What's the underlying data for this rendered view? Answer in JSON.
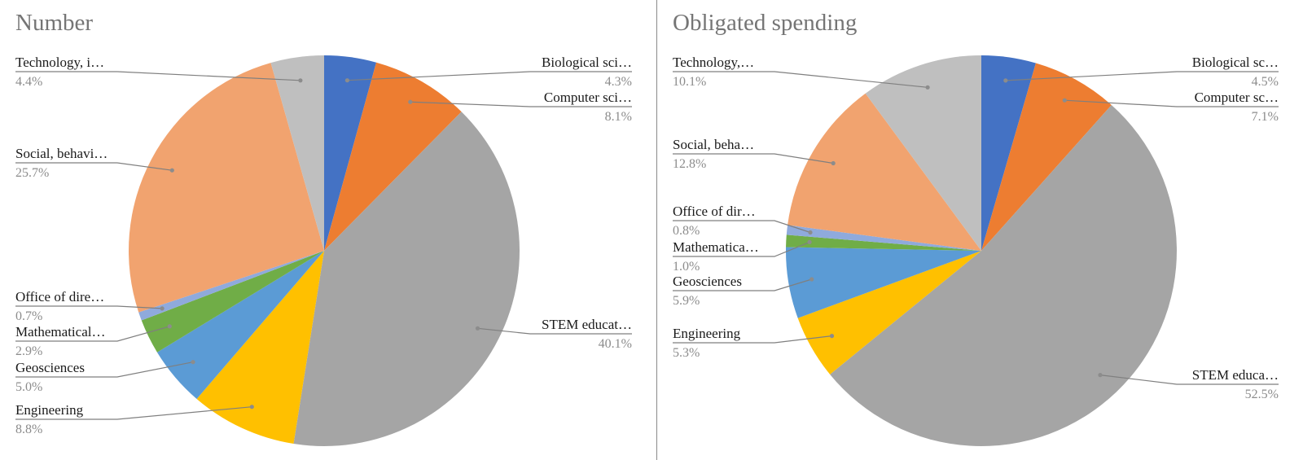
{
  "chart_data": [
    {
      "type": "pie",
      "title": "Number",
      "slices": [
        {
          "label": "Biological sci…",
          "value": 4.3,
          "display": "4.3%",
          "color": "#4472c4"
        },
        {
          "label": "Computer sci…",
          "value": 8.1,
          "display": "8.1%",
          "color": "#ed7d31"
        },
        {
          "label": "STEM educat…",
          "value": 40.1,
          "display": "40.1%",
          "color": "#a5a5a5"
        },
        {
          "label": "Engineering",
          "value": 8.8,
          "display": "8.8%",
          "color": "#ffc000"
        },
        {
          "label": "Geosciences",
          "value": 5.0,
          "display": "5.0%",
          "color": "#5b9bd5"
        },
        {
          "label": "Mathematical…",
          "value": 2.9,
          "display": "2.9%",
          "color": "#70ad47"
        },
        {
          "label": "Office of dire…",
          "value": 0.7,
          "display": "0.7%",
          "color": "#8faadc"
        },
        {
          "label": "Social, behavi…",
          "value": 25.7,
          "display": "25.7%",
          "color": "#f1a36f"
        },
        {
          "label": "Technology, i…",
          "value": 4.4,
          "display": "4.4%",
          "color": "#bfbfbf"
        }
      ]
    },
    {
      "type": "pie",
      "title": "Obligated spending",
      "slices": [
        {
          "label": "Biological sc…",
          "value": 4.5,
          "display": "4.5%",
          "color": "#4472c4"
        },
        {
          "label": "Computer sc…",
          "value": 7.1,
          "display": "7.1%",
          "color": "#ed7d31"
        },
        {
          "label": "STEM educa…",
          "value": 52.5,
          "display": "52.5%",
          "color": "#a5a5a5"
        },
        {
          "label": "Engineering",
          "value": 5.3,
          "display": "5.3%",
          "color": "#ffc000"
        },
        {
          "label": "Geosciences",
          "value": 5.9,
          "display": "5.9%",
          "color": "#5b9bd5"
        },
        {
          "label": "Mathematica…",
          "value": 1.0,
          "display": "1.0%",
          "color": "#70ad47"
        },
        {
          "label": "Office of dir…",
          "value": 0.8,
          "display": "0.8%",
          "color": "#8faadc"
        },
        {
          "label": "Social, beha…",
          "value": 12.8,
          "display": "12.8%",
          "color": "#f1a36f"
        },
        {
          "label": "Technology,…",
          "value": 10.1,
          "display": "10.1%",
          "color": "#bfbfbf"
        }
      ]
    }
  ]
}
